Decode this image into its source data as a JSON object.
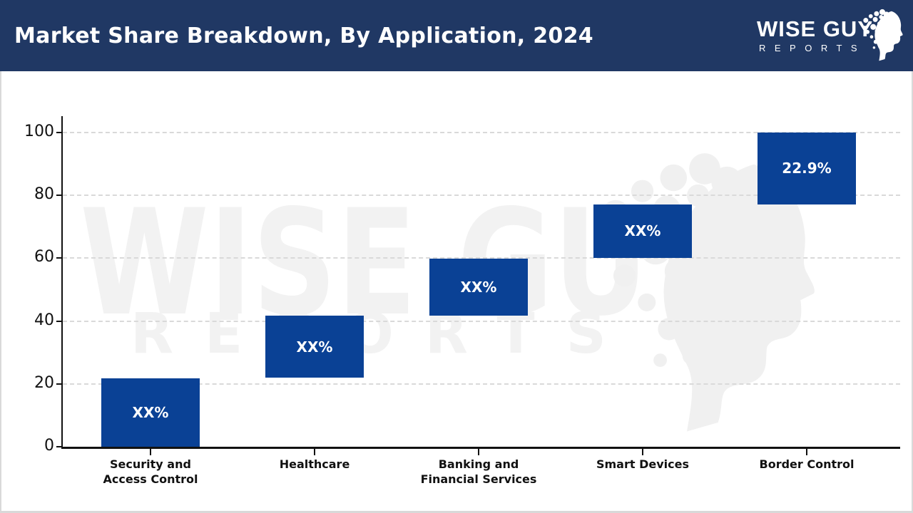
{
  "header": {
    "title": "Market Share Breakdown, By Application, 2024",
    "logo": {
      "line1": "WISE GUY",
      "line2": "REPORTS"
    }
  },
  "watermark": {
    "line1": "WISE GUY",
    "line2": "REPORTS"
  },
  "chart_data": {
    "type": "bar",
    "variant": "floating-segment-waterfall",
    "title": "Market Share Breakdown, By Application, 2024",
    "xlabel": "",
    "ylabel": "",
    "ylim": [
      0,
      100
    ],
    "yticks": [
      0,
      20,
      40,
      60,
      80,
      100
    ],
    "grid": "horizontal-dashed",
    "legend": "none",
    "bars": [
      {
        "category": "Security and Access Control",
        "category_lines": [
          "Security and",
          "Access Control"
        ],
        "start": 0,
        "end": 21.8,
        "label": "XX%"
      },
      {
        "category": "Healthcare",
        "category_lines": [
          "Healthcare"
        ],
        "start": 21.9,
        "end": 41.7,
        "label": "XX%"
      },
      {
        "category": "Banking and Financial Services",
        "category_lines": [
          "Banking and",
          "Financial Services"
        ],
        "start": 41.7,
        "end": 59.9,
        "label": "XX%"
      },
      {
        "category": "Smart Devices",
        "category_lines": [
          "Smart Devices"
        ],
        "start": 60.2,
        "end": 77.0,
        "label": "XX%"
      },
      {
        "category": "Border Control",
        "category_lines": [
          "Border Control"
        ],
        "start": 77.1,
        "end": 100,
        "label": "22.9%"
      }
    ]
  },
  "colors": {
    "header_bg": "#203864",
    "bar": "#0a4195",
    "bar_label": "#ffffff",
    "grid": "#d9d9d9",
    "axis": "#111111",
    "watermark": "#f2f2f2",
    "page_border": "#d9d9d9"
  }
}
